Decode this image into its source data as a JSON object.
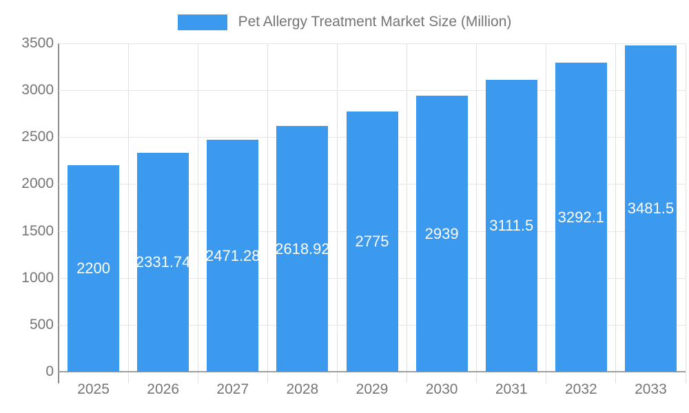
{
  "legend": {
    "label": "Pet Allergy Treatment Market Size (Million)"
  },
  "colors": {
    "bar": "#3B99EE",
    "grid": "#e6e6e6",
    "axis": "#9e9e9e",
    "tick_text": "#757575",
    "value_text": "#ffffff"
  },
  "chart_data": {
    "type": "bar",
    "title": "Pet Allergy Treatment Market Size (Million)",
    "categories": [
      "2025",
      "2026",
      "2027",
      "2028",
      "2029",
      "2030",
      "2031",
      "2032",
      "2033"
    ],
    "values": [
      2200,
      2331.74,
      2471.28,
      2618.92,
      2775,
      2939,
      3111.5,
      3292.1,
      3481.5
    ],
    "value_labels": [
      "2200",
      "2331.74",
      "2471.28",
      "2618.92",
      "2775",
      "2939",
      "3111.5",
      "3292.1",
      "3481.5"
    ],
    "xlabel": "",
    "ylabel": "",
    "ylim": [
      0,
      3500
    ],
    "ytick_step": 500,
    "ytick_labels": [
      "0",
      "500",
      "1000",
      "1500",
      "2000",
      "2500",
      "3000",
      "3500"
    ],
    "grid": "on",
    "legend_position": "top-center",
    "value_label_position": "inside-middle"
  }
}
